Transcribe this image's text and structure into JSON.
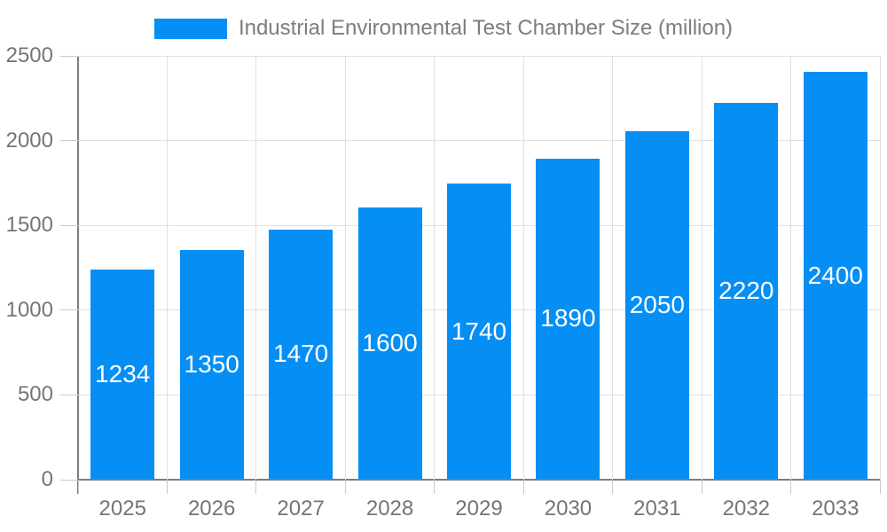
{
  "chart_data": {
    "type": "bar",
    "categories": [
      "2025",
      "2026",
      "2027",
      "2028",
      "2029",
      "2030",
      "2031",
      "2032",
      "2033"
    ],
    "values": [
      1234,
      1350,
      1470,
      1600,
      1740,
      1890,
      2050,
      2220,
      2400
    ],
    "series_name": "Industrial Environmental Test Chamber Size (million)",
    "title": "",
    "xlabel": "",
    "ylabel": "",
    "ylim": [
      0,
      2500
    ],
    "yticks": [
      0,
      500,
      1000,
      1500,
      2000,
      2500
    ],
    "grid": true,
    "legend_position": "top",
    "bar_labels_inside": true
  },
  "legend": {
    "label": "Industrial Environmental Test Chamber Size (million)"
  },
  "colors": {
    "bar": "#058FF5",
    "bar_label": "#ffffff",
    "axis_line": "#7c7c7c",
    "grid_line": "#e0e0e0",
    "tick_mark": "#c9c9c9",
    "tick_text": "#757575",
    "legend_text": "#7d7d7d",
    "background": "#ffffff"
  }
}
